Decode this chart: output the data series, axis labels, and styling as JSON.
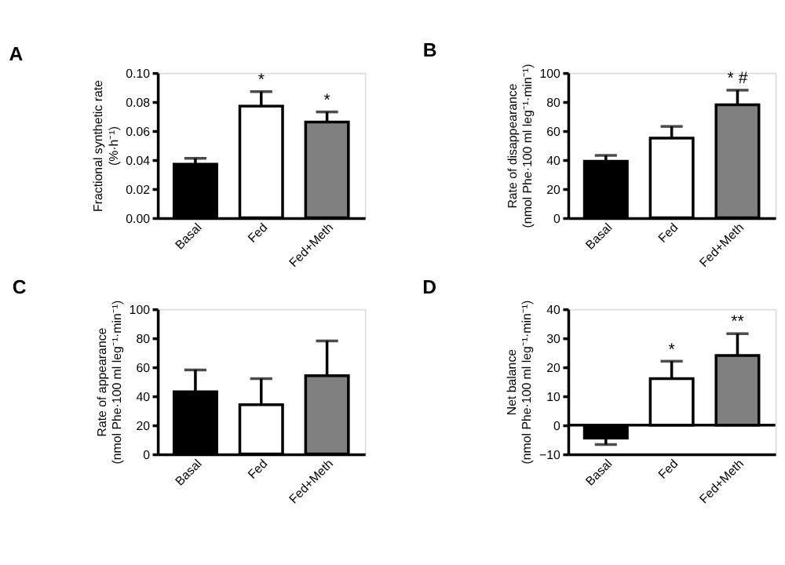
{
  "chart_data": [
    {
      "type": "bar",
      "title": "A",
      "ylabel": "Fractional synthetic rate (%·h⁻¹)",
      "categories": [
        "Basal",
        "Fed",
        "Fed+Meth"
      ],
      "values": [
        0.037,
        0.077,
        0.066
      ],
      "colors": [
        "#000000",
        "#ffffff",
        "#808080"
      ],
      "errors": [
        [
          0.037,
          0.041
        ],
        [
          0.077,
          0.087
        ],
        [
          0.066,
          0.073
        ]
      ],
      "ylim": [
        0,
        0.1
      ],
      "yticks": [
        {
          "value": 0,
          "label": "0.00"
        },
        {
          "value": 0.02,
          "label": "0.02"
        },
        {
          "value": 0.04,
          "label": "0.04"
        },
        {
          "value": 0.06,
          "label": "0.06"
        },
        {
          "value": 0.08,
          "label": "0.08"
        },
        {
          "value": 0.1,
          "label": "0.10"
        }
      ],
      "annotations": [
        {
          "text": "*",
          "x": "Fed",
          "y": 0.087
        },
        {
          "text": "*",
          "x": "Fed+Meth",
          "y": 0.073
        }
      ]
    },
    {
      "type": "bar",
      "title": "B",
      "ylabel": "Rate of disappearance (nmol Phe·100 ml leg⁻¹·min⁻¹)",
      "categories": [
        "Basal",
        "Fed",
        "Fed+Meth"
      ],
      "values": [
        39,
        55,
        78
      ],
      "colors": [
        "#000000",
        "#ffffff",
        "#808080"
      ],
      "errors": [
        [
          39,
          43
        ],
        [
          55,
          63
        ],
        [
          78,
          88
        ]
      ],
      "ylim": [
        0,
        100
      ],
      "yticks": [
        0,
        20,
        40,
        60,
        80,
        100
      ],
      "annotations": [
        {
          "text": "* #",
          "x": "Fed+Meth",
          "y": 88
        }
      ]
    },
    {
      "type": "bar",
      "title": "C",
      "ylabel": "Rate of appearance (nmol Phe·100 ml leg⁻¹·min⁻¹)",
      "categories": [
        "Basal",
        "Fed",
        "Fed+Meth"
      ],
      "values": [
        43,
        34,
        54
      ],
      "colors": [
        "#000000",
        "#ffffff",
        "#808080"
      ],
      "errors": [
        [
          43,
          58
        ],
        [
          34,
          52
        ],
        [
          54,
          78
        ]
      ],
      "ylim": [
        0,
        100
      ],
      "yticks": [
        0,
        20,
        40,
        60,
        80,
        100
      ]
    },
    {
      "type": "bar",
      "title": "D",
      "ylabel": "Net balance (nmol Phe·100 ml leg⁻¹·min⁻¹)",
      "categories": [
        "Basal",
        "Fed",
        "Fed+Meth"
      ],
      "values": [
        -4.5,
        16,
        24
      ],
      "colors": [
        "#000000",
        "#ffffff",
        "#808080"
      ],
      "errors": [
        [
          -6.7,
          -4.5
        ],
        [
          16,
          22
        ],
        [
          24,
          31.5
        ]
      ],
      "ylim": [
        -10,
        40
      ],
      "yticks": [
        -10,
        0,
        10,
        20,
        30,
        40
      ],
      "annotations": [
        {
          "text": "*",
          "x": "Fed",
          "y": 22
        },
        {
          "text": "**",
          "x": "Fed+Meth",
          "y": 31.5
        }
      ]
    }
  ]
}
